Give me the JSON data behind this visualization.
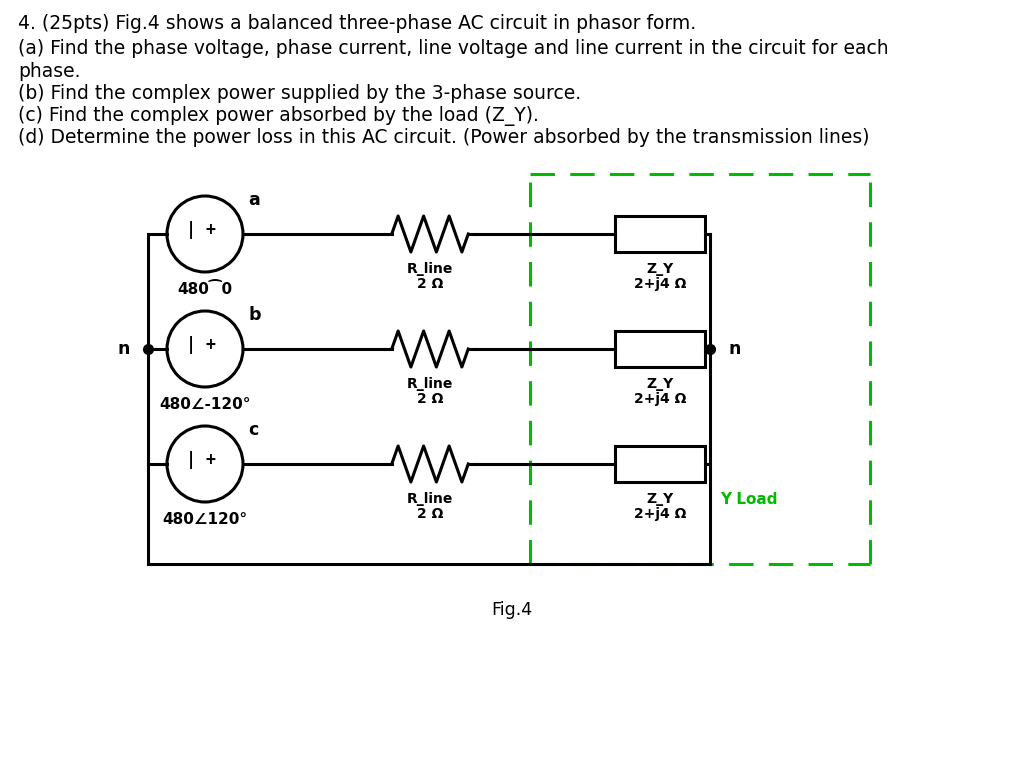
{
  "title_text": "4. (25pts) Fig.4 shows a balanced three-phase AC circuit in phasor form.",
  "line_a": "(a) Find the phase voltage, phase current, line voltage and line current in the circuit for each",
  "line_a2": "phase.",
  "line_b": "(b) Find the complex power supplied by the 3-phase source.",
  "line_c": "(c) Find the complex power absorbed by the load (Z_Y).",
  "line_d": "(d) Determine the power loss in this AC circuit. (Power absorbed by the transmission lines)",
  "fig_caption": "Fig.4",
  "bg_color": "#ffffff",
  "text_color": "#000000",
  "circuit_line_color": "#000000",
  "dashed_box_color": "#00bb00",
  "source_labels": [
    "480⁀0",
    "480∠-120°",
    "480∠120°"
  ],
  "phase_labels": [
    "a",
    "b",
    "c"
  ],
  "y_load_label": "Y Load",
  "n_label": "n",
  "font_size_text": 13.5,
  "font_size_circuit": 11.5,
  "font_size_label": 10
}
